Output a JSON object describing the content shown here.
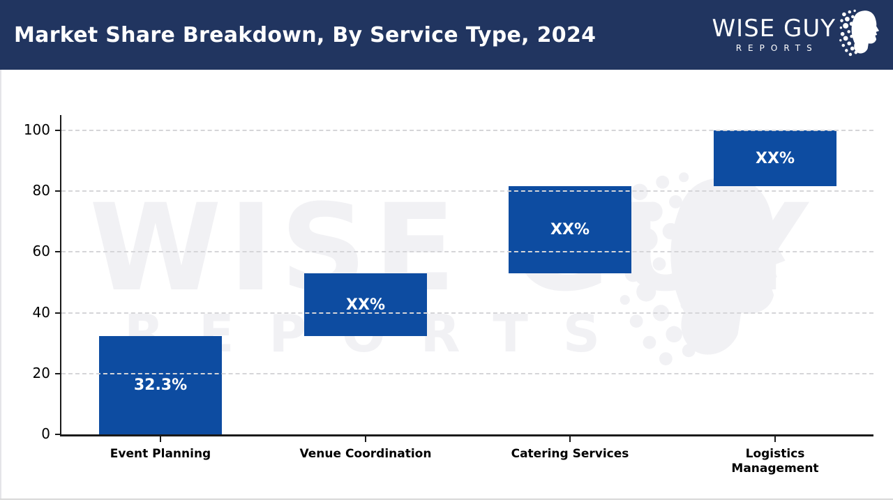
{
  "header": {
    "title": "Market Share Breakdown, By Service Type, 2024",
    "bg_color": "#213560",
    "logo": {
      "line1": "WISE GUY",
      "line2": "REPORTS",
      "head_icon": "dotted-profile-head-icon"
    }
  },
  "watermark": {
    "line1": "WISE GUY",
    "line2": "REPORTS",
    "head_icon": "dotted-profile-head-icon"
  },
  "chart_data": {
    "type": "bar",
    "subtype": "waterfall",
    "title": "Market Share Breakdown, By Service Type, 2024",
    "categories": [
      "Event Planning",
      "Venue Coordination",
      "Catering Services",
      "Logistics\nManagement"
    ],
    "segments": [
      {
        "category": "Event Planning",
        "start": 0,
        "end": 32.3,
        "label": "32.3%"
      },
      {
        "category": "Venue Coordination",
        "start": 32.3,
        "end": 52.9,
        "label": "XX%"
      },
      {
        "category": "Catering Services",
        "start": 52.9,
        "end": 81.6,
        "label": "XX%"
      },
      {
        "category": "Logistics Management",
        "start": 81.6,
        "end": 100,
        "label": "XX%"
      }
    ],
    "estimated_increments": [
      32.3,
      20.6,
      28.7,
      18.4
    ],
    "xlabel": "",
    "ylabel": "",
    "ylim": [
      0,
      100
    ],
    "yticks": [
      0,
      20,
      40,
      60,
      80,
      100
    ],
    "grid": true,
    "grid_style": "dashed",
    "legend": false,
    "bar_color": "#0d4ca1",
    "value_label_color": "#ffffff",
    "axis_color": "#1a1a1a",
    "gridline_color": "#d5d5d8"
  }
}
